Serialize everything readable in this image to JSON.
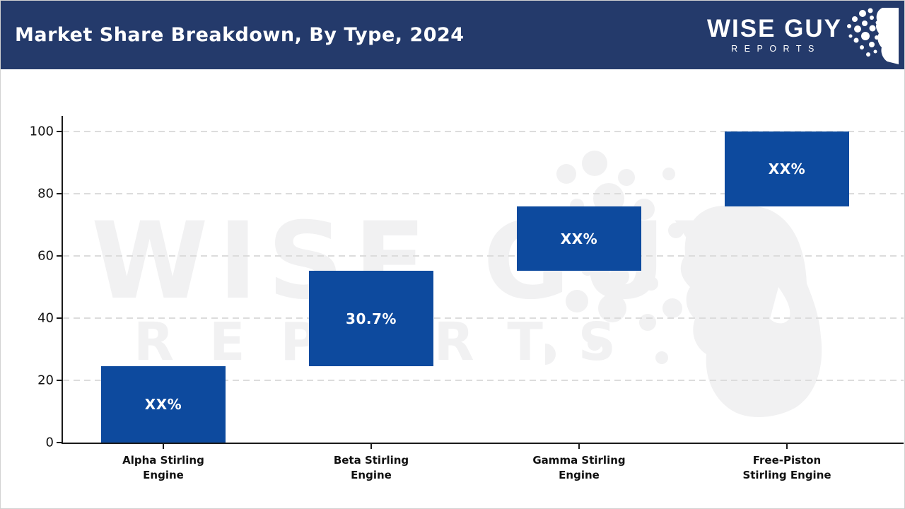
{
  "header": {
    "title": "Market Share Breakdown, By Type, 2024",
    "logo": {
      "primary": "WISE GUY",
      "secondary": "REPORTS"
    }
  },
  "watermark": {
    "line1": "WISE GUY",
    "line2": "REPORTS"
  },
  "chart_data": {
    "type": "bar",
    "subtype": "floating-waterfall",
    "title": "Market Share Breakdown, By Type, 2024",
    "xlabel": "",
    "ylabel": "",
    "categories": [
      "Alpha Stirling Engine",
      "Beta Stirling Engine",
      "Gamma Stirling Engine",
      "Free-Piston Stirling Engine"
    ],
    "category_label_lines": [
      [
        "Alpha Stirling",
        "Engine"
      ],
      [
        "Beta Stirling",
        "Engine"
      ],
      [
        "Gamma Stirling",
        "Engine"
      ],
      [
        "Free-Piston",
        "Stirling Engine"
      ]
    ],
    "bars": [
      {
        "category": "Alpha Stirling Engine",
        "start": 0,
        "end": 24.5,
        "height": 24.5,
        "label": "XX%"
      },
      {
        "category": "Beta Stirling Engine",
        "start": 24.5,
        "end": 55.2,
        "height": 30.7,
        "label": "30.7%"
      },
      {
        "category": "Gamma Stirling Engine",
        "start": 55.2,
        "end": 75.9,
        "height": 20.7,
        "label": "XX%"
      },
      {
        "category": "Free-Piston Stirling Engine",
        "start": 75.9,
        "end": 100,
        "height": 24.1,
        "label": "XX%"
      }
    ],
    "yticks": [
      0,
      20,
      40,
      60,
      80,
      100
    ],
    "ylim": [
      0,
      105
    ],
    "grid": "horizontal-dashed",
    "legend": "none",
    "bar_color": "#0d4a9e",
    "bar_label_color": "#ffffff"
  },
  "colors": {
    "header_bg": "#243a6b",
    "axis": "#1a1a1a",
    "grid": "#dcdcdc",
    "watermark": "#f1f1f2",
    "page_border": "#d2d2d2"
  }
}
